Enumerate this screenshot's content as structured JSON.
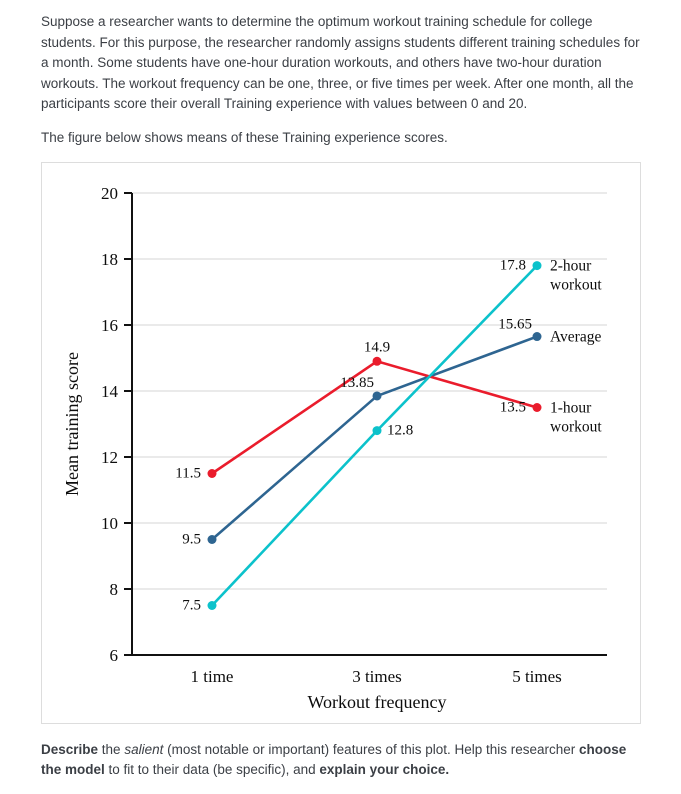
{
  "intro": {
    "paragraph1": "Suppose a researcher wants to determine the optimum workout training schedule for college students. For this purpose, the researcher randomly assigns students different training schedules for a month. Some students have one-hour duration workouts, and others have two-hour duration workouts. The workout frequency can be one, three, or five times per week. After one month, all the participants score their overall Training experience with values between 0 and 20.",
    "paragraph2": "The figure below shows means of these Training experience scores."
  },
  "chart_data": {
    "type": "line",
    "title": "",
    "categories": [
      "1 time",
      "3 times",
      "5 times"
    ],
    "xlabel": "Workout frequency",
    "ylabel": "Mean training score",
    "ylim": [
      6,
      20
    ],
    "yticks": [
      6,
      8,
      10,
      12,
      14,
      16,
      18,
      20
    ],
    "grid": "horizontal",
    "legend_position": "inline-right-of-last-point",
    "series": [
      {
        "name": "2-hour workout",
        "label_lines": [
          "2-hour",
          "workout"
        ],
        "color": "#0cc2cb",
        "values": [
          7.5,
          12.8,
          17.8
        ]
      },
      {
        "name": "Average",
        "label_lines": [
          "Average"
        ],
        "color": "#2e6591",
        "values": [
          9.5,
          13.85,
          15.65
        ]
      },
      {
        "name": "1-hour workout",
        "label_lines": [
          "1-hour",
          "workout"
        ],
        "color": "#ea1c2c",
        "values": [
          11.5,
          14.9,
          13.5
        ]
      }
    ]
  },
  "instructions": {
    "segments": [
      {
        "text": "Describe",
        "style": "bold"
      },
      {
        "text": " the ",
        "style": "normal"
      },
      {
        "text": "salient",
        "style": "italic"
      },
      {
        "text": " (most notable or important) features of this plot.  Help this researcher ",
        "style": "normal"
      },
      {
        "text": "choose the model",
        "style": "bold"
      },
      {
        "text": " to fit to their data (be specific), and ",
        "style": "normal"
      },
      {
        "text": "explain your choice.",
        "style": "bold"
      }
    ]
  }
}
